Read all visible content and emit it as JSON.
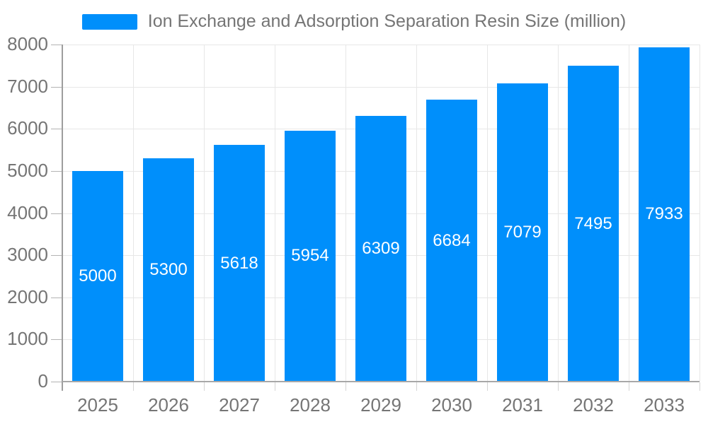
{
  "chart_data": {
    "type": "bar",
    "title": "",
    "legend_label": "Ion Exchange and Adsorption Separation Resin Size (million)",
    "legend_position": "top",
    "categories": [
      "2025",
      "2026",
      "2027",
      "2028",
      "2029",
      "2030",
      "2031",
      "2032",
      "2033"
    ],
    "series": [
      {
        "name": "Ion Exchange and Adsorption Separation Resin Size (million)",
        "values": [
          5000,
          5300,
          5618,
          5954,
          6309,
          6684,
          7079,
          7495,
          7933
        ]
      }
    ],
    "value_labels_shown": true,
    "xlabel": "",
    "ylabel": "",
    "ylim": [
      0,
      8000
    ],
    "yticks": [
      0,
      1000,
      2000,
      3000,
      4000,
      5000,
      6000,
      7000,
      8000
    ],
    "grid": true,
    "colors": {
      "bar": "#008ffb",
      "axis_text": "#757575",
      "value_label_text": "#ffffff",
      "gridline": "#e7e7e7",
      "axis_line": "#a8a8a8"
    }
  }
}
